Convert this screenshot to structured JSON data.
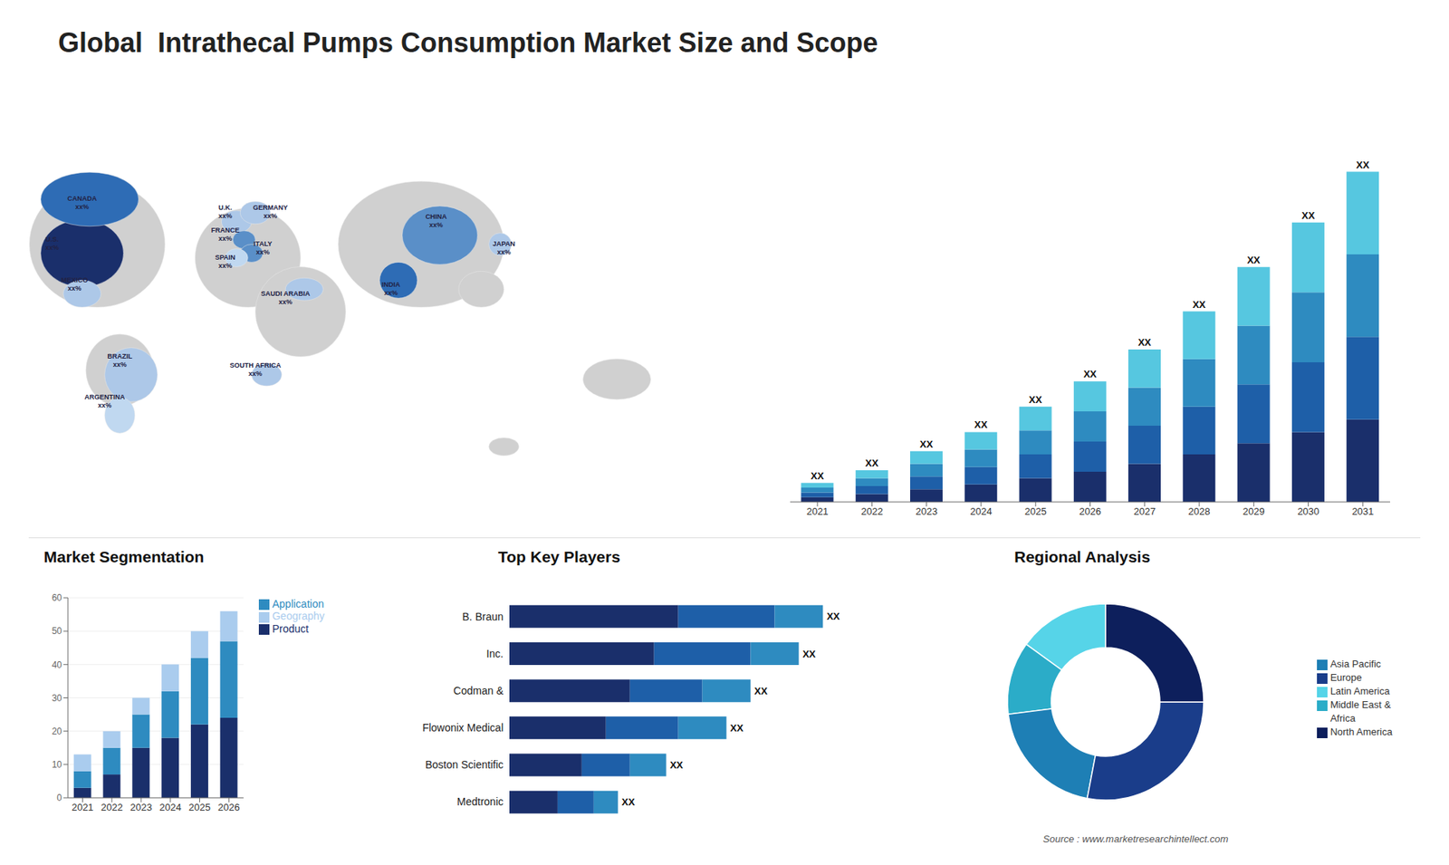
{
  "chart_data": [
    {
      "type": "map",
      "title": "Global  Intrathecal Pumps Consumption Market Size and Scope",
      "annotations": [
        "CANADA\nxx%",
        "U.S.\nxx%",
        "MEXICO\nxx%",
        "BRAZIL\nxx%",
        "ARGENTINA\nxx%",
        "U.K.\nxx%",
        "FRANCE\nxx%",
        "SPAIN\nxx%",
        "GERMANY\nxx%",
        "ITALY\nxx%",
        "SAUDI ARABIA\nxx%",
        "SOUTH AFRICA\nxx%",
        "CHINA\nxx%",
        "JAPAN\nxx%",
        "INDIA\nxx%"
      ]
    },
    {
      "type": "bar",
      "stacked": true,
      "categories": [
        "2021",
        "2022",
        "2023",
        "2024",
        "2025",
        "2026",
        "2027",
        "2028",
        "2029",
        "2030",
        "2031"
      ],
      "series": [
        {
          "color": "#1a2f6b",
          "values": [
            1.5,
            2.5,
            4.0,
            5.5,
            7.5,
            9.5,
            12.0,
            15.0,
            18.5,
            22.0,
            26.0
          ]
        },
        {
          "color": "#1e5fa8",
          "values": [
            1.5,
            2.5,
            4.0,
            5.5,
            7.5,
            9.5,
            12.0,
            15.0,
            18.5,
            22.0,
            26.0
          ]
        },
        {
          "color": "#2e8bc0",
          "values": [
            1.5,
            2.5,
            4.0,
            5.5,
            7.5,
            9.5,
            12.0,
            15.0,
            18.5,
            22.0,
            26.0
          ]
        },
        {
          "color": "#56c7e0",
          "values": [
            1.5,
            2.5,
            4.0,
            5.5,
            7.5,
            9.5,
            12.0,
            15.0,
            18.5,
            22.0,
            26.0
          ]
        }
      ],
      "annotations": [
        "XX",
        "XX",
        "XX",
        "XX",
        "XX",
        "XX",
        "XX",
        "XX",
        "XX",
        "XX",
        "XX"
      ],
      "ylim": [
        0,
        124.8
      ],
      "tick_labels": "x"
    },
    {
      "type": "bar",
      "title": "Market Segmentation",
      "stacked": true,
      "categories": [
        "2021",
        "2022",
        "2023",
        "2024",
        "2025",
        "2026"
      ],
      "series": [
        {
          "name": "Product",
          "color": "#1a2f6b",
          "values": [
            3,
            7,
            15,
            18,
            22,
            24
          ]
        },
        {
          "name": "Application",
          "color": "#2e8bc0",
          "values": [
            5,
            8,
            10,
            14,
            20,
            23
          ]
        },
        {
          "name": "Geography",
          "color": "#aaccee",
          "values": [
            5,
            5,
            5,
            8,
            8,
            9
          ]
        }
      ],
      "ylim": [
        0,
        60
      ],
      "yticks": [
        0,
        10,
        20,
        30,
        40,
        50,
        60
      ],
      "grid": true,
      "legend": "right"
    },
    {
      "type": "bar",
      "title": "Top Key Players",
      "orientation": "horizontal",
      "stacked": true,
      "categories": [
        "B. Braun",
        "Inc.",
        "Codman &",
        "Flowonix Medical",
        "Boston Scientific",
        "Medtronic"
      ],
      "series": [
        {
          "color": "#1a2f6b",
          "values": [
            7,
            6,
            5,
            4,
            3,
            2
          ]
        },
        {
          "color": "#1e5fa8",
          "values": [
            4,
            4,
            3,
            3,
            2,
            1.5
          ]
        },
        {
          "color": "#2e8bc0",
          "values": [
            2,
            2,
            2,
            2,
            1.5,
            1
          ]
        }
      ],
      "annotations": [
        "XX",
        "XX",
        "XX",
        "XX",
        "XX",
        "XX"
      ],
      "xlim": [
        0,
        16.9
      ],
      "tick_labels": "y"
    },
    {
      "type": "donut",
      "title": "Regional Analysis",
      "categories": [
        "Latin America",
        "Middle East &\nAfrica",
        "Asia Pacific",
        "Europe",
        "North America"
      ],
      "values": [
        15,
        12,
        20,
        28,
        25
      ],
      "colors": [
        "#56d4e8",
        "#2bacc8",
        "#1e7fb5",
        "#1a3d8a",
        "#0d1f5c"
      ],
      "legend": "right",
      "annotations": [
        "Source : www.marketresearchintellect.com"
      ]
    }
  ]
}
